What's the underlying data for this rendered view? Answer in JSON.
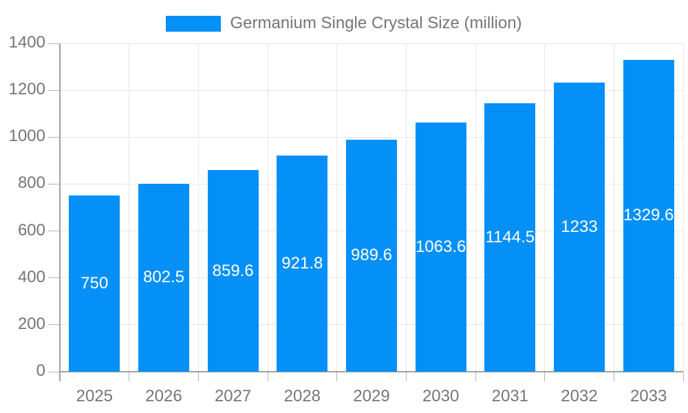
{
  "chart_data": {
    "type": "bar",
    "title": "Germanium Single Crystal Size (million)",
    "categories": [
      "2025",
      "2026",
      "2027",
      "2028",
      "2029",
      "2030",
      "2031",
      "2032",
      "2033"
    ],
    "series": [
      {
        "name": "Germanium Single Crystal Size (million)",
        "values": [
          750,
          802.5,
          859.6,
          921.8,
          989.6,
          1063.6,
          1144.5,
          1233,
          1329.6
        ]
      }
    ],
    "value_labels": [
      "750",
      "802.5",
      "859.6",
      "921.8",
      "989.6",
      "1063.6",
      "1144.5",
      "1233",
      "1329.6"
    ],
    "xlabel": "",
    "ylabel": "",
    "ylim": [
      0,
      1400
    ],
    "yticks": [
      0,
      200,
      400,
      600,
      800,
      1000,
      1200,
      1400
    ],
    "grid": true,
    "legend_position": "top-center",
    "colors": {
      "bar": "#0590f8",
      "axis_text": "#757575",
      "value_label_text": "#ffffff",
      "gridline": "#e6e6e6",
      "axis_line": "#a0a0a0",
      "tick_mark": "#b3b3b3",
      "background": "#ffffff"
    }
  }
}
